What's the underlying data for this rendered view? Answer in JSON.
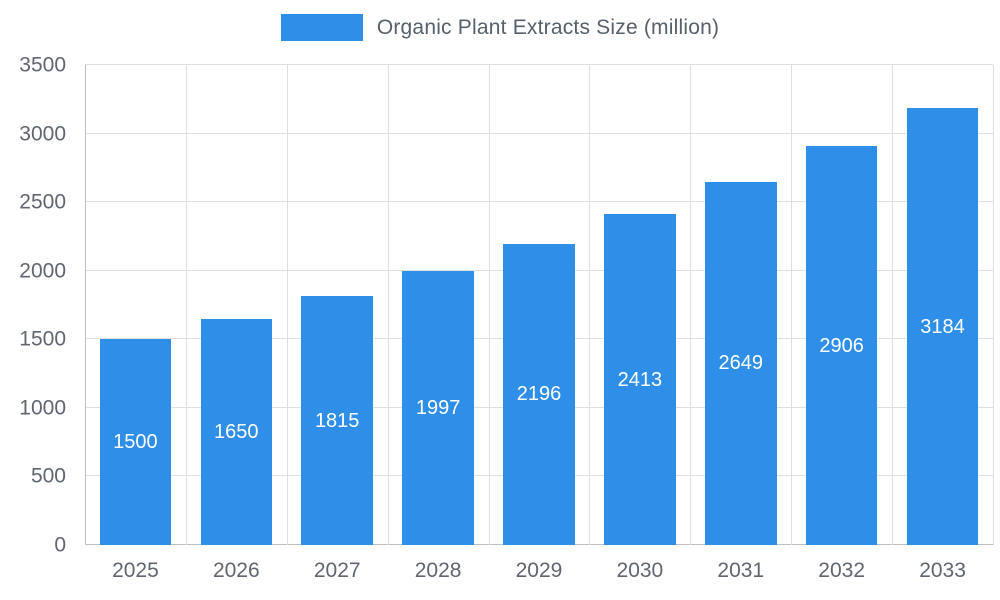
{
  "legend": {
    "label": "Organic Plant Extracts Size (million)"
  },
  "chart_data": {
    "type": "bar",
    "title": "Organic Plant Extracts Size (million)",
    "categories": [
      "2025",
      "2026",
      "2027",
      "2028",
      "2029",
      "2030",
      "2031",
      "2032",
      "2033"
    ],
    "values": [
      1500,
      1650,
      1815,
      1997,
      2196,
      2413,
      2649,
      2906,
      3184
    ],
    "xlabel": "",
    "ylabel": "",
    "ylim": [
      0,
      3500
    ],
    "yticks": [
      0,
      500,
      1000,
      1500,
      2000,
      2500,
      3000,
      3500
    ],
    "grid": true,
    "legend_position": "top",
    "bar_color": "#2f8fe8",
    "value_label_color": "#ffffff",
    "axis_text_color": "#5f6670",
    "gridline_color": "#e0e0e0"
  }
}
